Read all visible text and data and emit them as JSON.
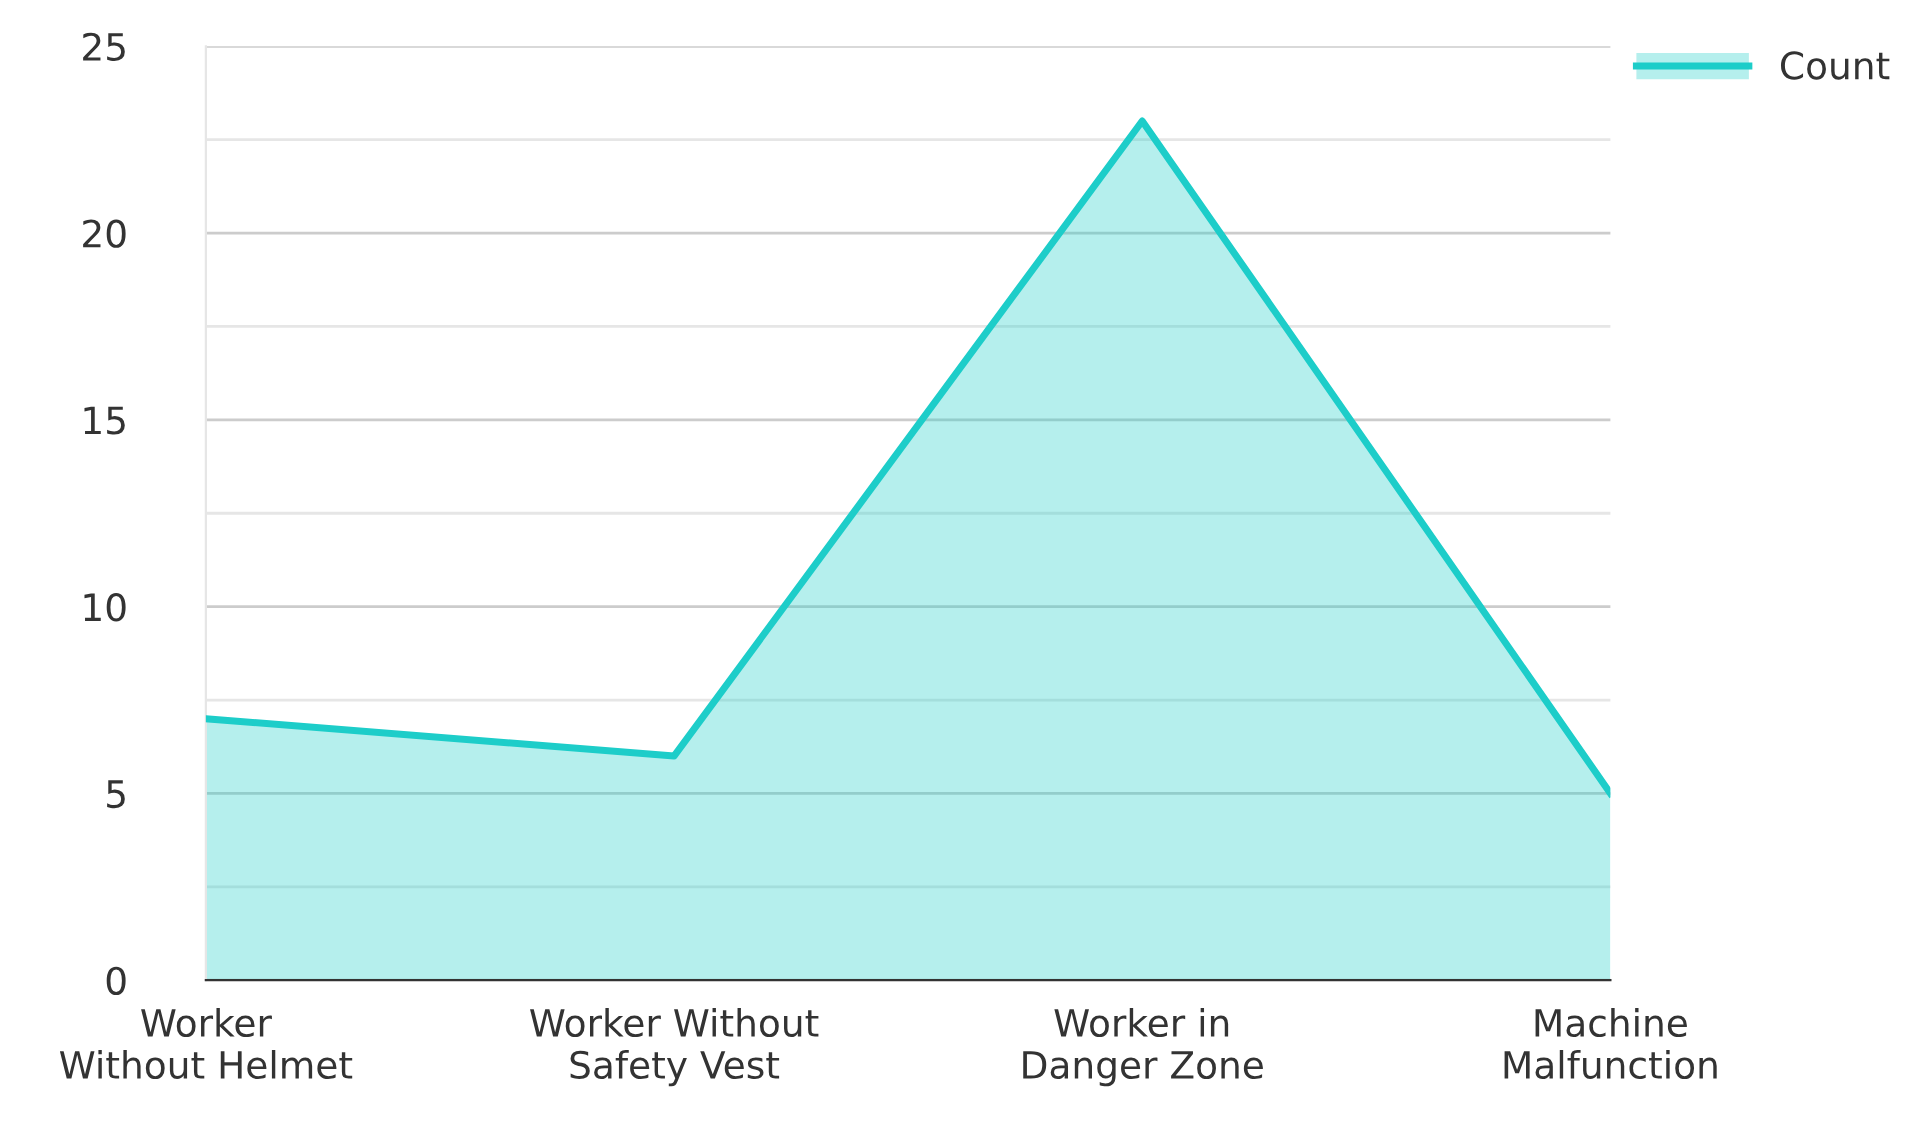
{
  "chart_data": {
    "type": "area",
    "categories": [
      "Worker Without Helmet",
      "Worker Without Safety Vest",
      "Worker in Danger Zone",
      "Machine Malfunction"
    ],
    "series": [
      {
        "name": "Count",
        "color": "#1dcdc9",
        "values": [
          7,
          6,
          23,
          5
        ]
      }
    ],
    "ylim": [
      0,
      25
    ],
    "yticks": [
      0,
      {
        "value": 2.5,
        "label": null
      },
      5,
      {
        "value": 7.5,
        "label": null
      },
      10,
      {
        "value": 12.5,
        "label": null
      },
      15,
      {
        "value": 17.5,
        "label": null
      },
      20,
      {
        "value": 22.5,
        "label": null
      },
      25
    ],
    "grid": "y",
    "legend": "top right"
  }
}
